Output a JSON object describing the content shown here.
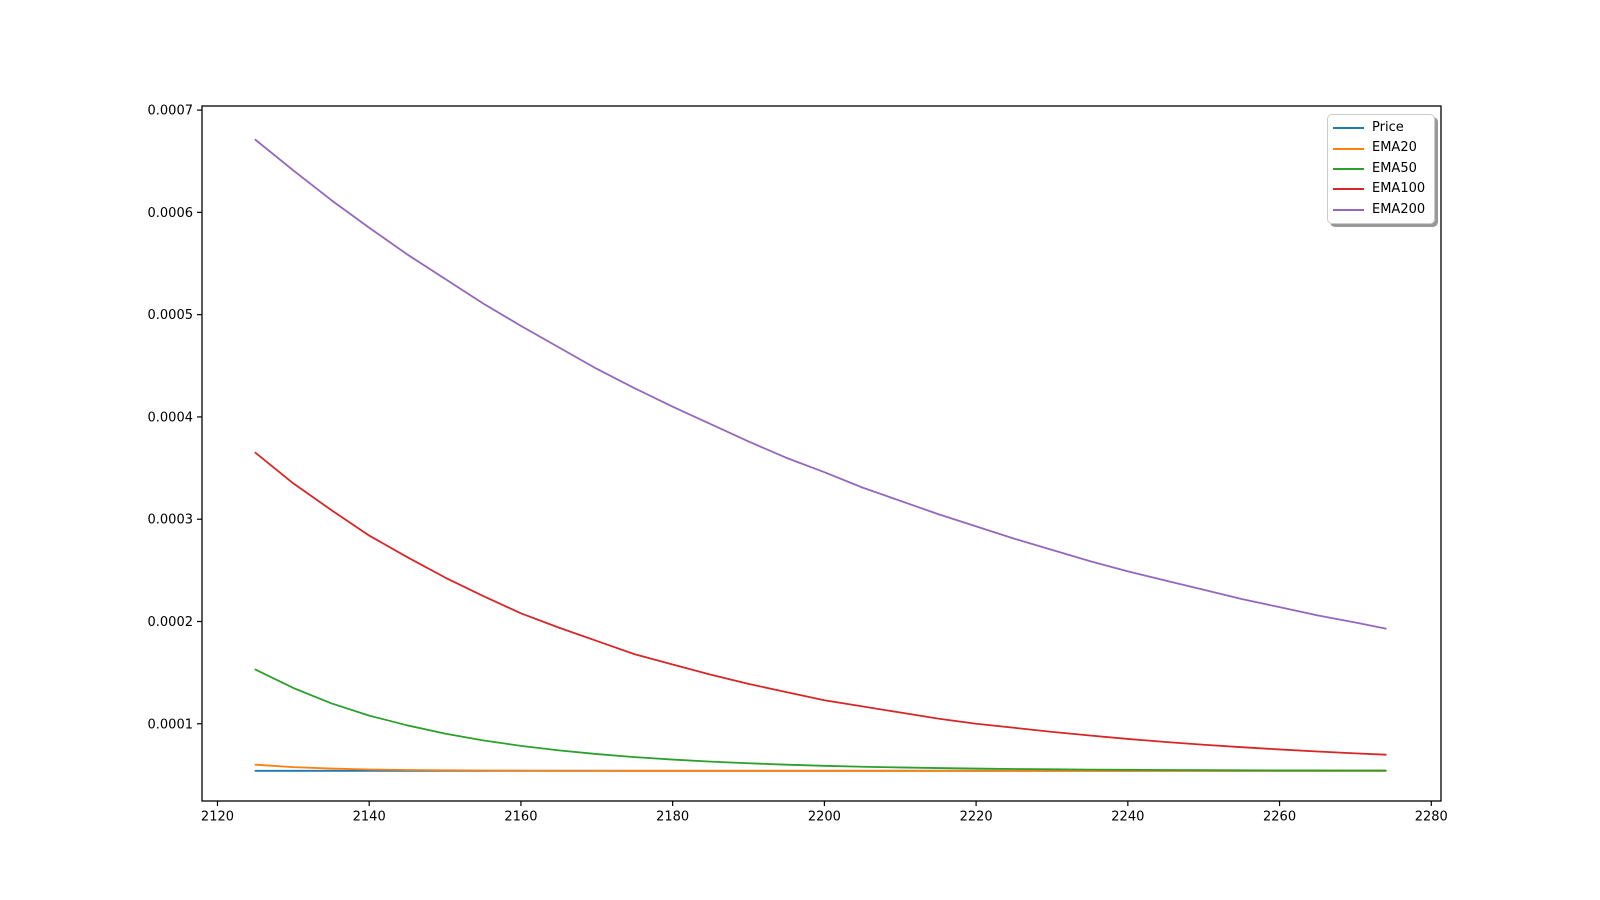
{
  "figure": {
    "background": "#ffffff",
    "spine_color": "#000000",
    "tick_color": "#000000"
  },
  "legend": {
    "position": "upper right",
    "entries": [
      {
        "label": "Price",
        "color": "#1f77b4"
      },
      {
        "label": "EMA20",
        "color": "#ff7f0e"
      },
      {
        "label": "EMA50",
        "color": "#2ca02c"
      },
      {
        "label": "EMA100",
        "color": "#d62728"
      },
      {
        "label": "EMA200",
        "color": "#9467bd"
      }
    ]
  },
  "chart_data": {
    "type": "line",
    "title": "",
    "xlabel": "",
    "ylabel": "",
    "grid": false,
    "legend_position": "upper right",
    "xlim": [
      2117.96,
      2281.28
    ],
    "ylim": [
      2.45e-05,
      0.000704
    ],
    "x_tick_values": [
      2120,
      2140,
      2160,
      2180,
      2200,
      2220,
      2240,
      2260,
      2280
    ],
    "x_tick_labels": [
      "2120",
      "2140",
      "2160",
      "2180",
      "2200",
      "2220",
      "2240",
      "2260",
      "2280"
    ],
    "y_tick_values": [
      0.0001,
      0.0002,
      0.0003,
      0.0004,
      0.0005,
      0.0006,
      0.0007
    ],
    "y_tick_labels": [
      "0.0001",
      "0.0002",
      "0.0003",
      "0.0004",
      "0.0005",
      "0.0006",
      "0.0007"
    ],
    "x": [
      2125,
      2130,
      2135,
      2140,
      2145,
      2150,
      2155,
      2160,
      2165,
      2170,
      2175,
      2180,
      2185,
      2190,
      2195,
      2200,
      2205,
      2210,
      2215,
      2220,
      2225,
      2230,
      2235,
      2240,
      2245,
      2250,
      2255,
      2260,
      2265,
      2270,
      2274
    ],
    "series": [
      {
        "name": "Price",
        "color": "#1f77b4",
        "values": [
          5.4e-05,
          5.4e-05,
          5.4e-05,
          5.4e-05,
          5.4e-05,
          5.4e-05,
          5.4e-05,
          5.4e-05,
          5.4e-05,
          5.4e-05,
          5.4e-05,
          5.4e-05,
          5.4e-05,
          5.4e-05,
          5.4e-05,
          5.4e-05,
          5.4e-05,
          5.4e-05,
          5.4e-05,
          5.4e-05,
          5.4e-05,
          5.4e-05,
          5.4e-05,
          5.4e-05,
          5.4e-05,
          5.4e-05,
          5.4e-05,
          5.4e-05,
          5.4e-05,
          5.4e-05,
          5.4e-05
        ]
      },
      {
        "name": "EMA20",
        "color": "#ff7f0e",
        "values": [
          6e-05,
          5.76e-05,
          5.62e-05,
          5.53e-05,
          5.48e-05,
          5.45e-05,
          5.43e-05,
          5.42e-05,
          5.41e-05,
          5.41e-05,
          5.4e-05,
          5.4e-05,
          5.4e-05,
          5.4e-05,
          5.4e-05,
          5.4e-05,
          5.4e-05,
          5.4e-05,
          5.4e-05,
          5.4e-05,
          5.4e-05,
          5.4e-05,
          5.4e-05,
          5.4e-05,
          5.4e-05,
          5.4e-05,
          5.4e-05,
          5.4e-05,
          5.4e-05,
          5.4e-05,
          5.4e-05
        ]
      },
      {
        "name": "EMA50",
        "color": "#2ca02c",
        "values": [
          0.000153,
          0.000135,
          0.00012,
          0.000108,
          9.85e-05,
          9.04e-05,
          8.38e-05,
          7.84e-05,
          7.4e-05,
          7.04e-05,
          6.74e-05,
          6.5e-05,
          6.3e-05,
          6.14e-05,
          6e-05,
          5.89e-05,
          5.8e-05,
          5.73e-05,
          5.67e-05,
          5.62e-05,
          5.58e-05,
          5.55e-05,
          5.52e-05,
          5.5e-05,
          5.48e-05,
          5.47e-05,
          5.45e-05,
          5.44e-05,
          5.44e-05,
          5.43e-05,
          5.43e-05
        ]
      },
      {
        "name": "EMA100",
        "color": "#d62728",
        "values": [
          0.000365,
          0.000335,
          0.000309,
          0.000284,
          0.000263,
          0.000243,
          0.000225,
          0.000208,
          0.000194,
          0.000181,
          0.000168,
          0.000158,
          0.000148,
          0.000139,
          0.000131,
          0.000123,
          0.000117,
          0.000111,
          0.000105,
          0.0001,
          9.61e-05,
          9.21e-05,
          8.85e-05,
          8.52e-05,
          8.22e-05,
          7.95e-05,
          7.71e-05,
          7.49e-05,
          7.29e-05,
          7.11e-05,
          6.98e-05
        ]
      },
      {
        "name": "EMA200",
        "color": "#9467bd",
        "values": [
          0.000671,
          0.000641,
          0.000612,
          0.000585,
          0.000559,
          0.000535,
          0.000511,
          0.000489,
          0.000468,
          0.000447,
          0.000428,
          0.00041,
          0.000393,
          0.000376,
          0.00036,
          0.000346,
          0.000331,
          0.000318,
          0.000305,
          0.000293,
          0.000281,
          0.00027,
          0.000259,
          0.000249,
          0.00024,
          0.000231,
          0.000222,
          0.000214,
          0.000206,
          0.000199,
          0.000193
        ]
      }
    ]
  }
}
